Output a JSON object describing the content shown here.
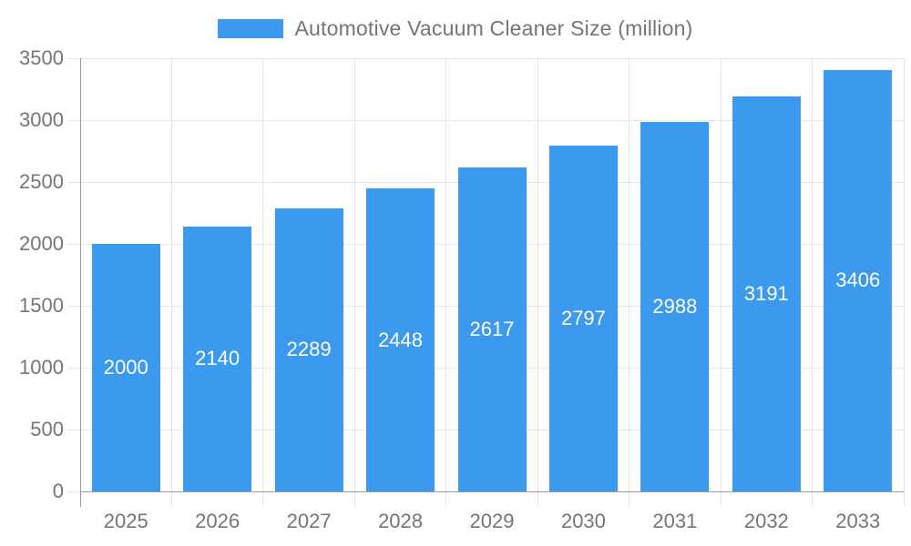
{
  "chart_data": {
    "type": "bar",
    "title": "Automotive Vacuum Cleaner Size (million)",
    "categories": [
      "2025",
      "2026",
      "2027",
      "2028",
      "2029",
      "2030",
      "2031",
      "2032",
      "2033"
    ],
    "values": [
      2000,
      2140,
      2289,
      2448,
      2617,
      2797,
      2988,
      3191,
      3406
    ],
    "series_name": "Automotive Vacuum Cleaner Size (million)",
    "xlabel": "",
    "ylabel": "",
    "ylim": [
      0,
      3500
    ],
    "ytick_step": 500,
    "grid": true,
    "legend_position": "top",
    "value_labels": "inside-center",
    "colors": {
      "bar": "#3b99ee",
      "grid": "#e6e6e6",
      "axis": "#9a9a9a",
      "tick_text": "#757575",
      "value_label_text": "#ffffff",
      "background": "#ffffff"
    }
  }
}
